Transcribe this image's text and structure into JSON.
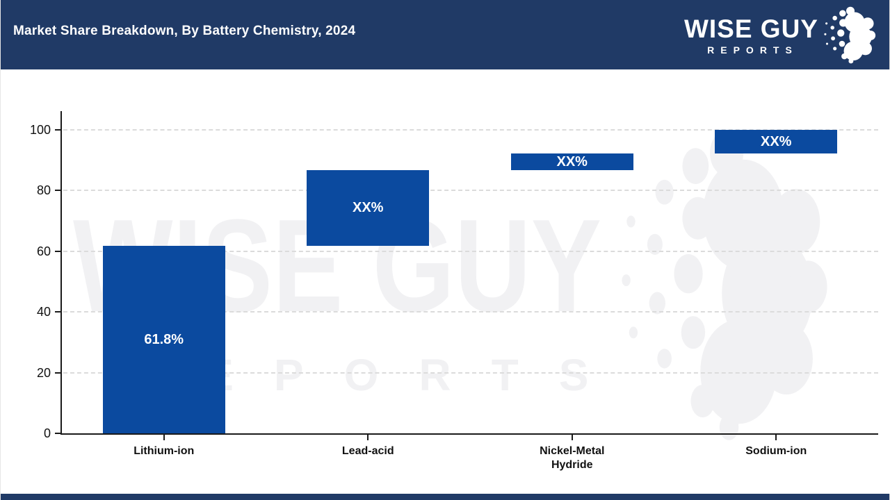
{
  "header": {
    "title": "Market Share Breakdown, By Battery Chemistry, 2024",
    "logo": {
      "line1": "WISE GUY",
      "line2": "REPORTS"
    }
  },
  "watermark": {
    "line1": "WISE GUY",
    "line2": "REPORTS"
  },
  "colors": {
    "header_bg": "#203A66",
    "bar": "#0B4A9F",
    "bar_label": "#FFFFFF",
    "gridline": "#DBDBDB",
    "axis": "#1A1A1A",
    "watermark": "#F1F1F3",
    "footer_bg": "#203A66"
  },
  "chart_data": {
    "type": "bar",
    "subtype": "waterfall",
    "title": "Market Share Breakdown, By Battery Chemistry, 2024",
    "categories": [
      "Lithium-ion",
      "Lead-acid",
      "Nickel-Metal\nHydride",
      "Sodium-ion"
    ],
    "bars": [
      {
        "category": "Lithium-ion",
        "start": 0,
        "end": 61.8,
        "label": "61.8%"
      },
      {
        "category": "Lead-acid",
        "start": 61.8,
        "end": 86.8,
        "label": "XX%"
      },
      {
        "category": "Nickel-Metal Hydride",
        "start": 86.8,
        "end": 92.2,
        "label": "XX%"
      },
      {
        "category": "Sodium-ion",
        "start": 92.2,
        "end": 100,
        "label": "XX%"
      }
    ],
    "xlabel": "",
    "ylabel": "",
    "ylim": [
      0,
      106
    ],
    "yticks": [
      0,
      20,
      40,
      60,
      80,
      100
    ],
    "grid": "horizontal-dashed",
    "legend": "none",
    "bar_color": "#0B4A9F",
    "bar_label_color": "#FFFFFF"
  }
}
